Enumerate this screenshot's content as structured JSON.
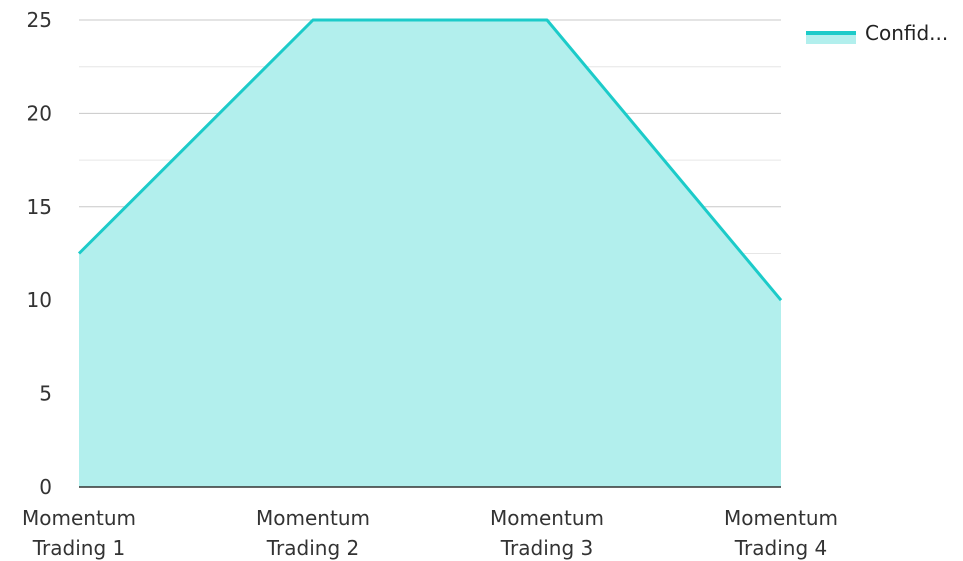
{
  "chart_data": {
    "type": "area",
    "categories": [
      "Momentum Trading 1",
      "Momentum Trading 2",
      "Momentum Trading 3",
      "Momentum Trading 4"
    ],
    "category_lines": [
      [
        "Momentum",
        "Trading 1"
      ],
      [
        "Momentum",
        "Trading 2"
      ],
      [
        "Momentum",
        "Trading 3"
      ],
      [
        "Momentum",
        "Trading 4"
      ]
    ],
    "series": [
      {
        "name": "Confid...",
        "values": [
          12.5,
          25,
          25,
          10
        ]
      }
    ],
    "yticks": [
      "0",
      "5",
      "10",
      "15",
      "20",
      "25"
    ],
    "ylim": [
      0,
      25
    ],
    "grid": true,
    "legend": "top-right",
    "colors": {
      "line": "#1ccbc9",
      "fill": "#b2efed",
      "grid": "#cccccc",
      "axis": "#333333"
    }
  }
}
